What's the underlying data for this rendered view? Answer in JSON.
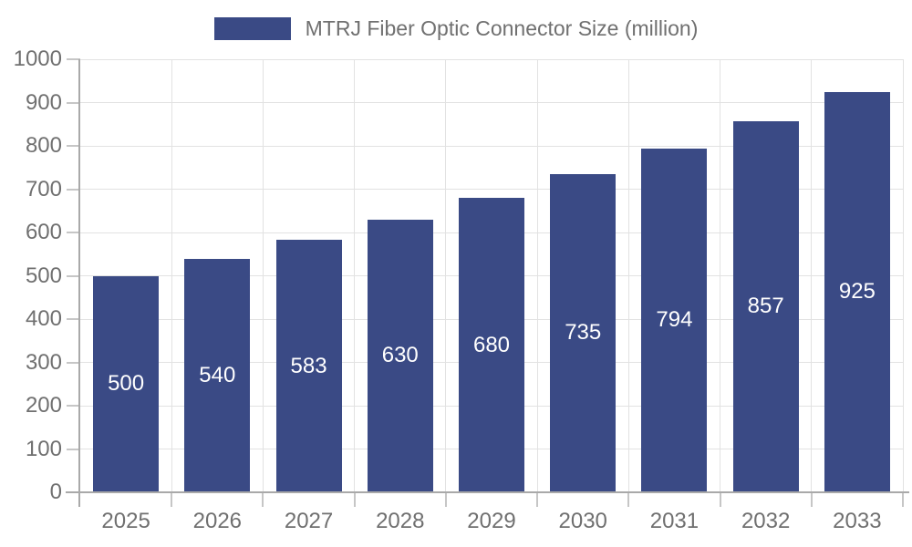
{
  "chart_data": {
    "type": "bar",
    "title": "MTRJ Fiber Optic Connector Size (million)",
    "legend_position": "top",
    "legend_entries": [
      "MTRJ Fiber Optic Connector Size (million)"
    ],
    "categories": [
      "2025",
      "2026",
      "2027",
      "2028",
      "2029",
      "2030",
      "2031",
      "2032",
      "2033"
    ],
    "series": [
      {
        "name": "MTRJ Fiber Optic Connector Size (million)",
        "values": [
          500,
          540,
          583,
          630,
          680,
          735,
          794,
          857,
          925
        ]
      }
    ],
    "value_labels": [
      "500",
      "540",
      "583",
      "630",
      "680",
      "735",
      "794",
      "857",
      "925"
    ],
    "xlabel": "",
    "ylabel": "",
    "ylim": [
      0,
      1000
    ],
    "ytick_interval": 100,
    "ytick_labels": [
      "0",
      "100",
      "200",
      "300",
      "400",
      "500",
      "600",
      "700",
      "800",
      "900",
      "1000"
    ],
    "grid": true,
    "value_labels_position": "center-inside"
  },
  "colors": {
    "bar": "#3A4A85",
    "bar_label": "#FFFFFF",
    "grid": "#E2E2E2",
    "axis": "#A9A9A9",
    "tick": "#C6C6C6",
    "text": "#707070",
    "background": "#FFFFFF"
  }
}
